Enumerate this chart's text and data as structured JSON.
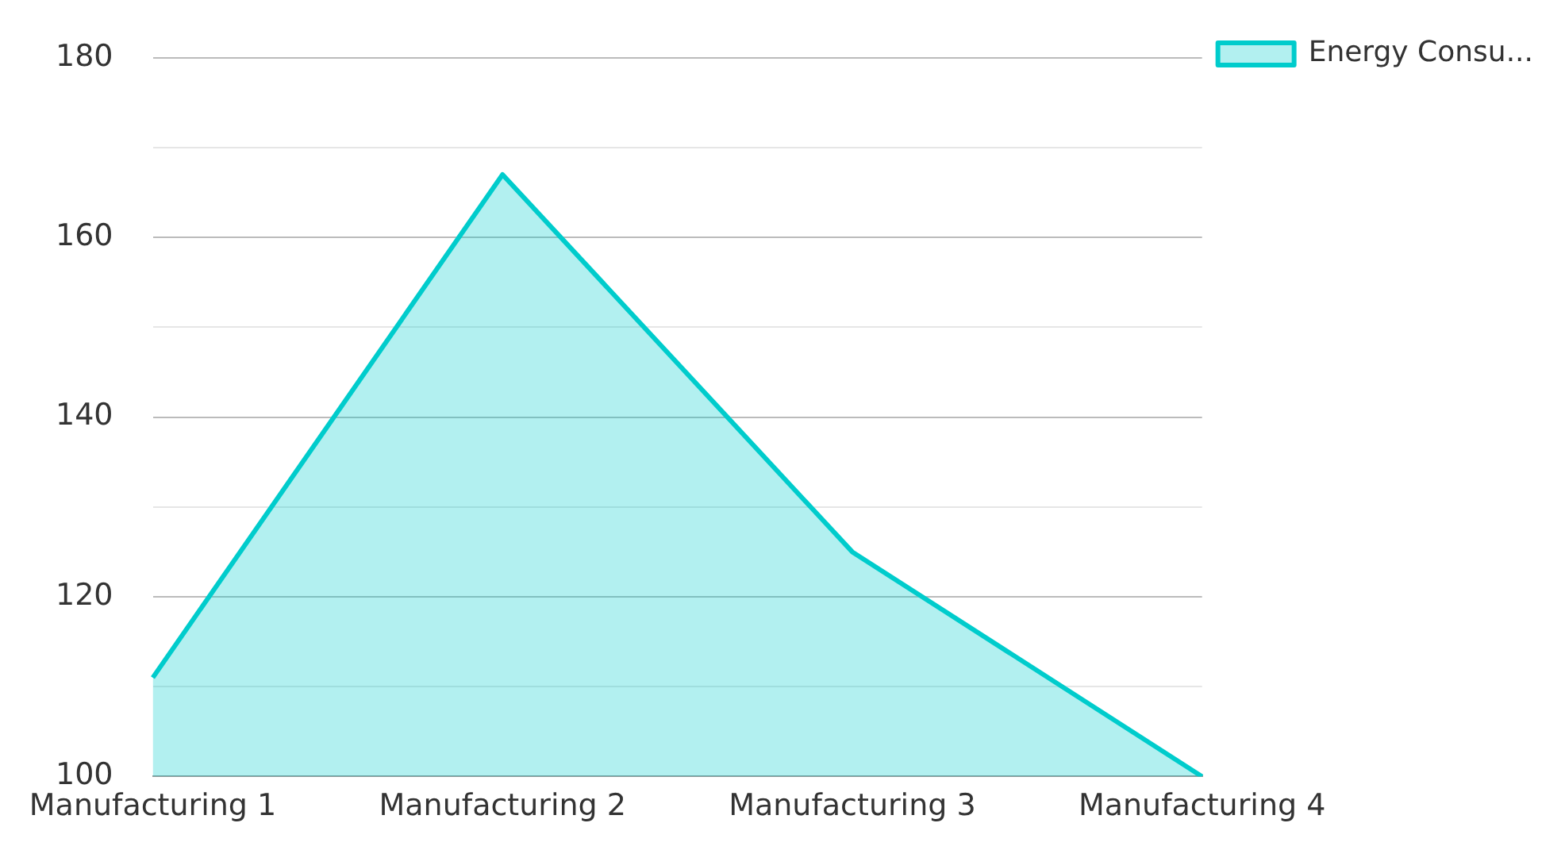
{
  "chart_data": {
    "type": "area",
    "categories": [
      "Manufacturing 1",
      "Manufacturing 2",
      "Manufacturing 3",
      "Manufacturing 4"
    ],
    "series": [
      {
        "name": "Energy Consu...",
        "color": "#00cccc",
        "values": [
          111,
          167,
          125,
          100
        ]
      }
    ],
    "ylim": [
      100,
      180
    ],
    "yticks": [
      100,
      {
        "value": 110,
        "label": null
      },
      120,
      {
        "value": 130,
        "label": null
      },
      140,
      {
        "value": 150,
        "label": null
      },
      160,
      {
        "value": 170,
        "label": null
      },
      180
    ],
    "grid": "y",
    "legend": "top right",
    "marker": "none"
  }
}
